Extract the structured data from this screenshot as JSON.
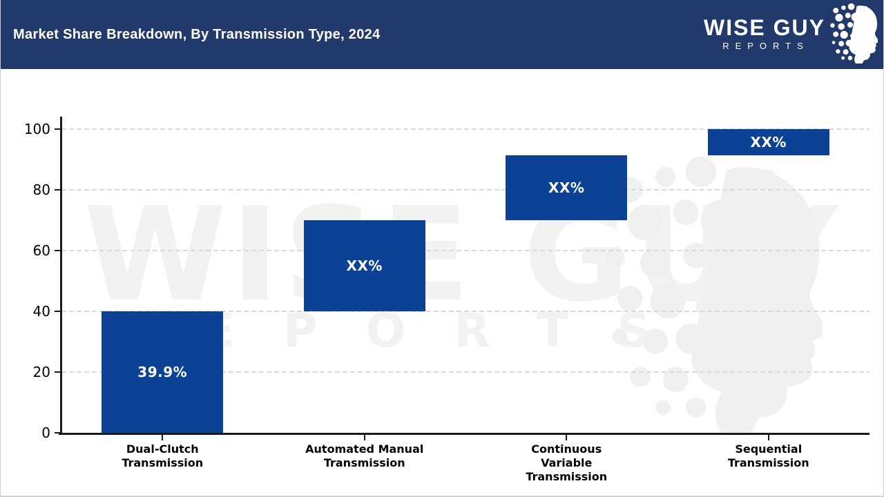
{
  "header": {
    "title": "Market Share Breakdown, By Transmission Type, 2024",
    "bg_color": "#223a6b",
    "logo": {
      "line1": "WISE GUY",
      "line2": "REPORTS"
    }
  },
  "watermark": {
    "line1": "WISE GUY",
    "line2": "REPORTS"
  },
  "chart_data": {
    "type": "bar",
    "subtype": "waterfall",
    "title": "Market Share Breakdown, By Transmission Type, 2024",
    "categories": [
      "Dual-Clutch Transmission",
      "Automated Manual Transmission",
      "Continuous Variable Transmission",
      "Sequential Transmission"
    ],
    "category_label_lines": [
      [
        "Dual-Clutch",
        "Transmission"
      ],
      [
        "Automated Manual",
        "Transmission"
      ],
      [
        "Continuous",
        "Variable",
        "Transmission"
      ],
      [
        "Sequential",
        "Transmission"
      ]
    ],
    "segments": [
      {
        "category": "Dual-Clutch Transmission",
        "start": 0,
        "end": 39.9,
        "value": 39.9,
        "label": "39.9%",
        "value_masked": false
      },
      {
        "category": "Automated Manual Transmission",
        "start": 39.9,
        "end": 69.9,
        "value": 30.0,
        "label": "XX%",
        "value_masked": true
      },
      {
        "category": "Continuous Variable Transmission",
        "start": 69.9,
        "end": 91.4,
        "value": 21.5,
        "label": "XX%",
        "value_masked": true
      },
      {
        "category": "Sequential Transmission",
        "start": 91.4,
        "end": 100,
        "value": 8.6,
        "label": "XX%",
        "value_masked": true
      }
    ],
    "yticks": [
      0,
      20,
      40,
      60,
      80,
      100
    ],
    "ylim": [
      0,
      104
    ],
    "xlabel": "",
    "ylabel": "",
    "grid": "horizontal-dashed",
    "legend": "none",
    "bar_color": "#0b4296",
    "bar_label_color": "#ffffff",
    "axis_color": "#1a1a1a",
    "gridline_color": "#d9d9d9",
    "watermark_text": "WISE GUY REPORTS"
  }
}
